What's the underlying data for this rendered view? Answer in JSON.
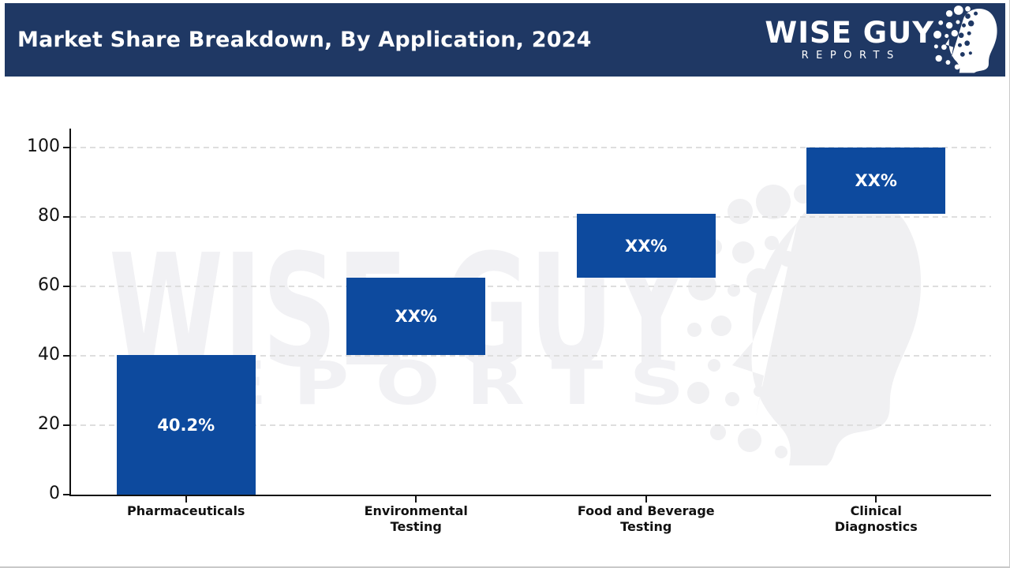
{
  "header": {
    "title": "Market Share Breakdown, By Application, 2024",
    "logo": {
      "line1": "WISE GUY",
      "line2": "REPORTS"
    }
  },
  "watermark": {
    "line1": "WISE GUY",
    "line2": "R E P O R T S"
  },
  "chart_data": {
    "type": "bar",
    "subtype": "waterfall",
    "title": "Market Share Breakdown, By Application, 2024",
    "xlabel": "",
    "ylabel": "",
    "ylim": [
      0,
      100
    ],
    "yticks": [
      0,
      20,
      40,
      60,
      80,
      100
    ],
    "grid": "dashed-horizontal",
    "bar_color": "#0d4a9e",
    "label_color": "#ffffff",
    "categories": [
      "Pharmaceuticals",
      "Environmental Testing",
      "Food and Beverage Testing",
      "Clinical Diagnostics"
    ],
    "segments": [
      {
        "lines": [
          "Pharmaceuticals"
        ],
        "start": 0,
        "end": 40.2,
        "label": "40.2%"
      },
      {
        "lines": [
          "Environmental",
          "Testing"
        ],
        "start": 40.2,
        "end": 62.5,
        "label": "XX%"
      },
      {
        "lines": [
          "Food and Beverage",
          "Testing"
        ],
        "start": 62.5,
        "end": 80.8,
        "label": "XX%"
      },
      {
        "lines": [
          "Clinical",
          "Diagnostics"
        ],
        "start": 81.0,
        "end": 100,
        "label": "XX%"
      }
    ]
  }
}
